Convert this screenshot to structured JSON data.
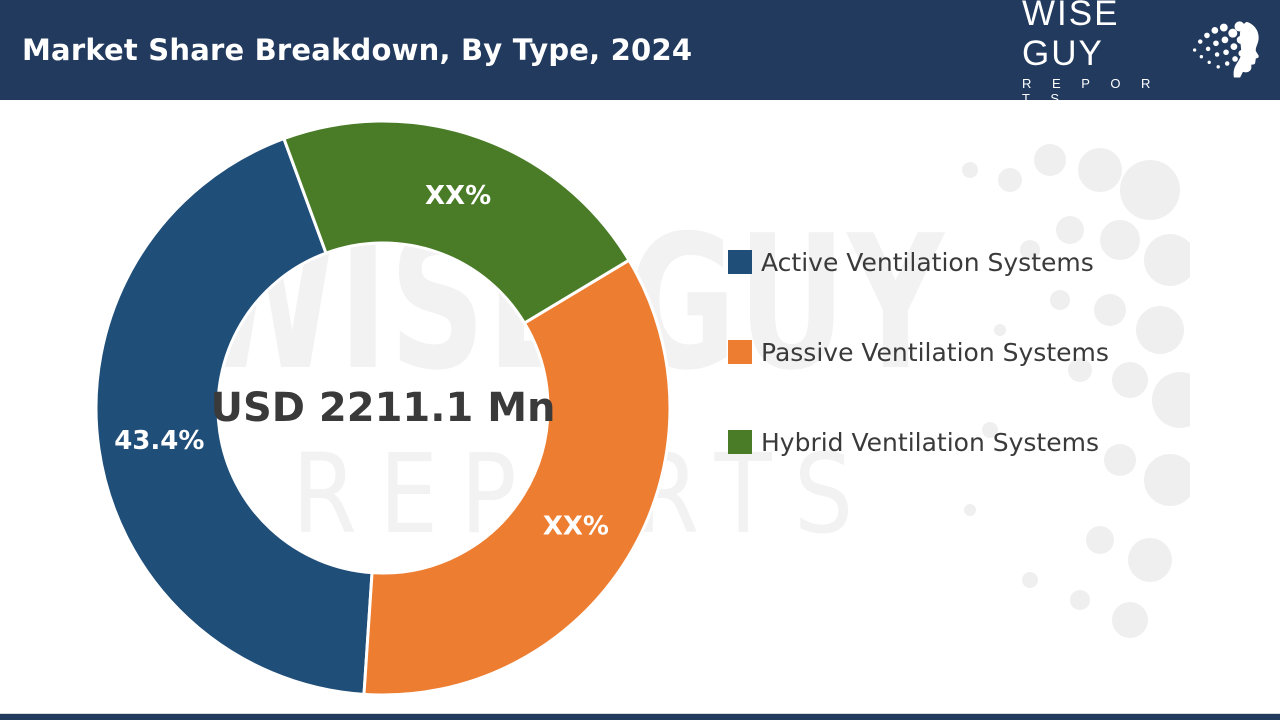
{
  "header": {
    "title": "Market Share Breakdown, By Type, 2024",
    "background_color": "#213A5E",
    "logo": {
      "line1": "WISE GUY",
      "line2": "R E P O R T S"
    }
  },
  "watermark": {
    "line1": "WISE GUY",
    "line2": "REPORTS"
  },
  "chart_data": {
    "type": "pie",
    "subtype": "donut",
    "title": "Market Share Breakdown, By Type, 2024",
    "center_label": "USD 2211.1 Mn",
    "legend_position": "right",
    "slices": [
      {
        "name": "Active Ventilation Systems",
        "label": "43.4%",
        "value_pct": 43.4,
        "color": "#1F4E79",
        "start_angle": 183.8,
        "end_angle": 339.8
      },
      {
        "name": "Passive Ventilation Systems",
        "label": "XX%",
        "value_pct": 34.7,
        "color": "#ED7D31",
        "start_angle": 59.0,
        "end_angle": 183.8
      },
      {
        "name": "Hybrid Ventilation Systems",
        "label": "XX%",
        "value_pct": 21.9,
        "color": "#4A7C28",
        "start_angle": -20.2,
        "end_angle": 59.0
      }
    ]
  },
  "footer": {
    "bar_color": "#213A5E"
  }
}
